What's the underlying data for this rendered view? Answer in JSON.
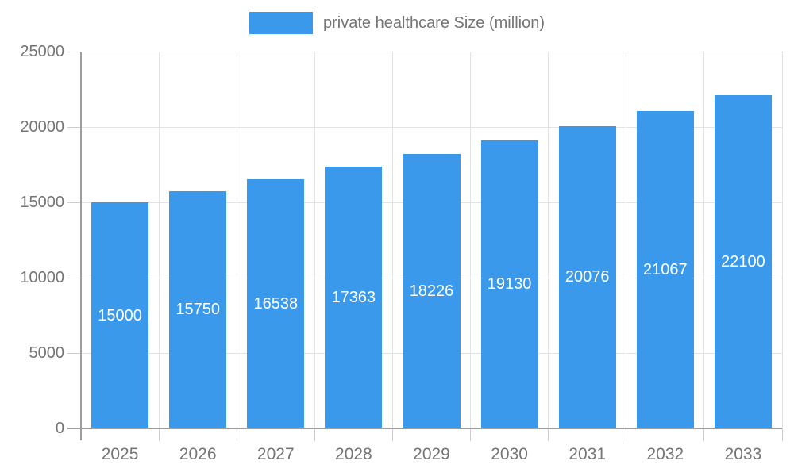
{
  "legend": {
    "label": "private healthcare Size (million)"
  },
  "colors": {
    "bar": "#3b99ec",
    "axis_line": "#9e9e9e",
    "gridline": "#e3e3e3",
    "tick_mark": "#cccccc",
    "tick_text": "#757575",
    "bar_label_text": "#ffffff",
    "background": "#ffffff"
  },
  "chart_data": {
    "type": "bar",
    "title": "private healthcare Size (million)",
    "categories": [
      "2025",
      "2026",
      "2027",
      "2028",
      "2029",
      "2030",
      "2031",
      "2032",
      "2033"
    ],
    "values": [
      15000,
      15750,
      16538,
      17363,
      18226,
      19130,
      20076,
      21067,
      22100
    ],
    "xlabel": "",
    "ylabel": "",
    "ylim": [
      0,
      25000
    ],
    "yticks": [
      0,
      5000,
      10000,
      15000,
      20000,
      25000
    ],
    "grid": true,
    "legend_position": "top",
    "bar_label_position": "inside-center"
  }
}
